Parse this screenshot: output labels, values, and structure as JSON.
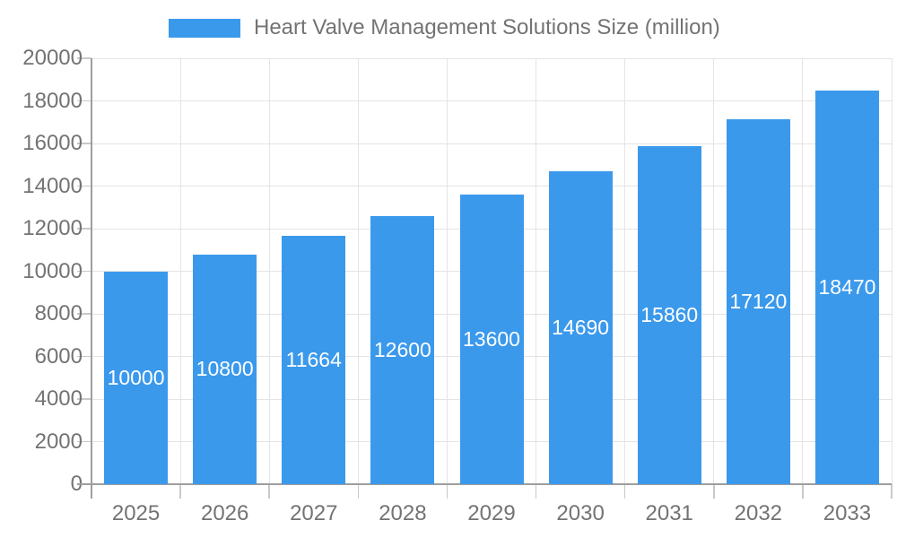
{
  "legend": {
    "label": "Heart Valve Management Solutions Size (million)"
  },
  "colors": {
    "bar": "#3B99EC",
    "grid": "#E4E4E4",
    "axis": "#9E9E9E",
    "tick": "#C9C9C9",
    "text": "#737373",
    "bar_label": "#FFFFFF",
    "background": "#FFFFFF"
  },
  "chart_data": {
    "type": "bar",
    "title": "Heart Valve Management Solutions Size (million)",
    "categories": [
      "2025",
      "2026",
      "2027",
      "2028",
      "2029",
      "2030",
      "2031",
      "2032",
      "2033"
    ],
    "series": [
      {
        "name": "Heart Valve Management Solutions Size (million)",
        "values": [
          10000,
          10800,
          11664,
          12600,
          13600,
          14690,
          15860,
          17120,
          18470
        ]
      }
    ],
    "value_labels": [
      "10000",
      "10800",
      "11664",
      "12600",
      "13600",
      "14690",
      "15860",
      "17120",
      "18470"
    ],
    "xlabel": "",
    "ylabel": "",
    "ylim": [
      0,
      20000
    ],
    "yticks": [
      0,
      2000,
      4000,
      6000,
      8000,
      10000,
      12000,
      14000,
      16000,
      18000,
      20000
    ],
    "grid": true,
    "legend_position": "top",
    "bar_value_labels_position": "center"
  }
}
